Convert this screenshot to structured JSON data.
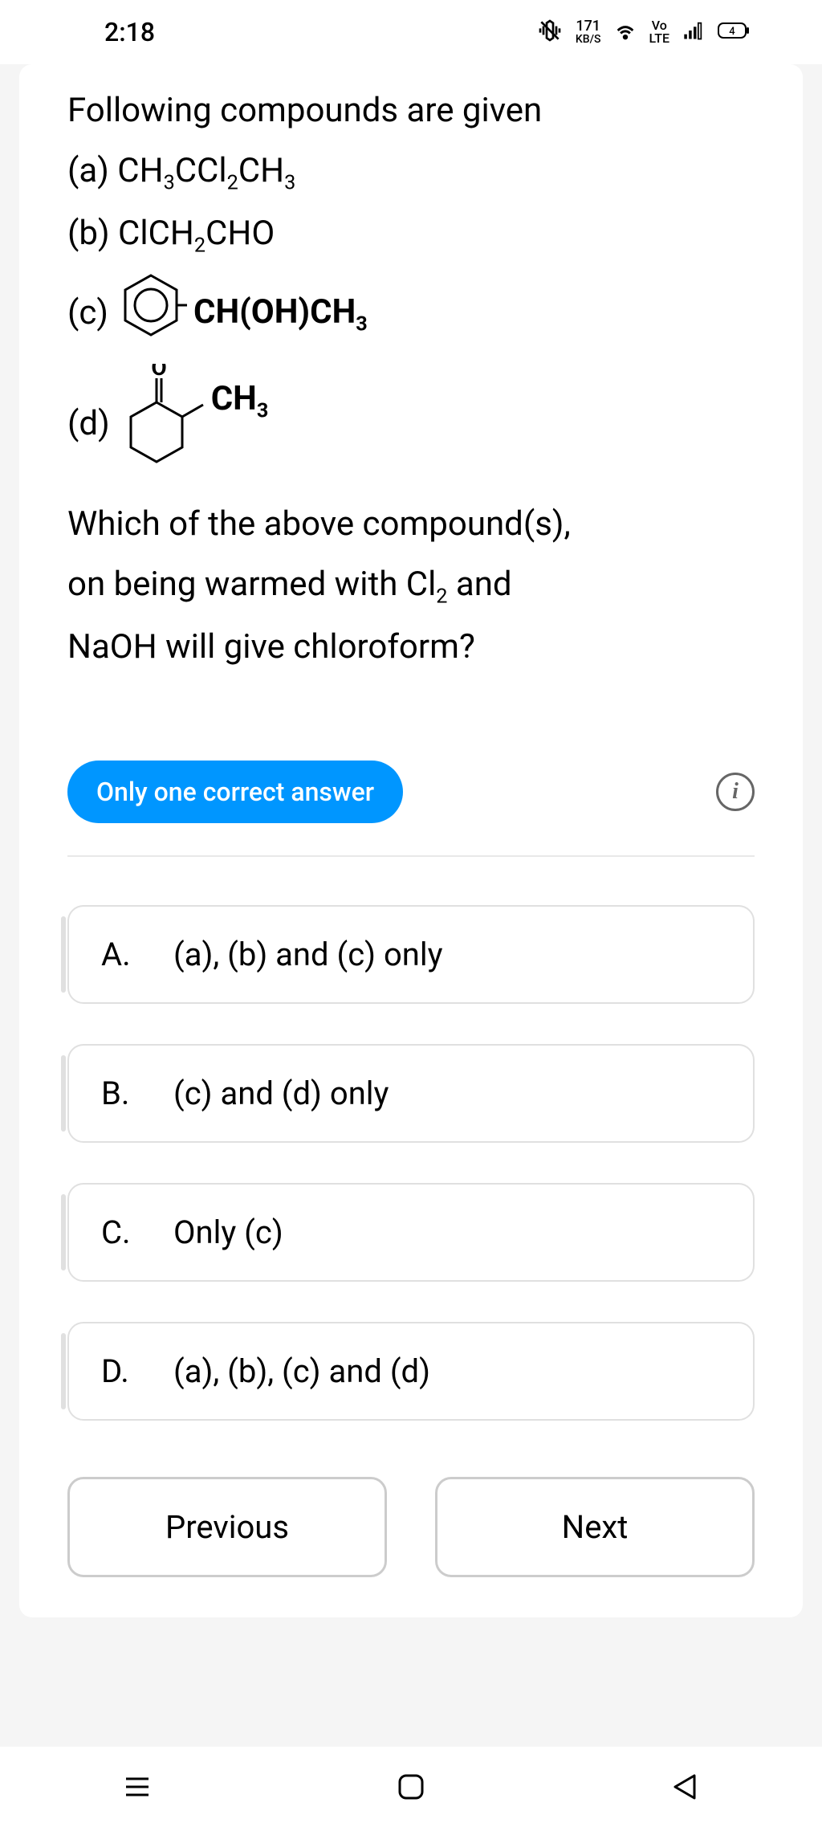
{
  "status_bar": {
    "time": "2:18",
    "kb_top": "171",
    "kb_bottom": "KB/S",
    "lte_top": "Vo",
    "lte_bottom": "LTE",
    "battery_level": "4"
  },
  "question": {
    "intro": "Following compounds are given",
    "compound_a_html": "(a) CH<sub>3</sub>CCl<sub>2</sub>CH<sub>3</sub>",
    "compound_b_html": "(b) ClCH<sub>2</sub>CHO",
    "compound_c_label": "(c)",
    "compound_c_formula_html": "CH(OH)CH<sub>3</sub>",
    "compound_d_label": "(d)",
    "compound_d_formula_html": "CH<sub>3</sub>",
    "prompt_line1_html": "Which of the above compound(s),",
    "prompt_line2_html": "on being warmed with Cl<sub>2</sub> and",
    "prompt_line3": "NaOH will give chloroform?"
  },
  "badge_label": "Only one correct answer",
  "info_symbol": "i",
  "options": {
    "A": {
      "letter": "A.",
      "text": "(a), (b) and (c) only"
    },
    "B": {
      "letter": "B.",
      "text": "(c) and (d) only"
    },
    "C": {
      "letter": "C.",
      "text": "Only (c)"
    },
    "D": {
      "letter": "D.",
      "text": "(a), (b), (c) and (d)"
    }
  },
  "nav": {
    "previous": "Previous",
    "next": "Next"
  },
  "colors": {
    "badge_bg": "#0096ff",
    "option_border": "#e0e0e0",
    "text": "#000000",
    "info_border": "#666666"
  }
}
